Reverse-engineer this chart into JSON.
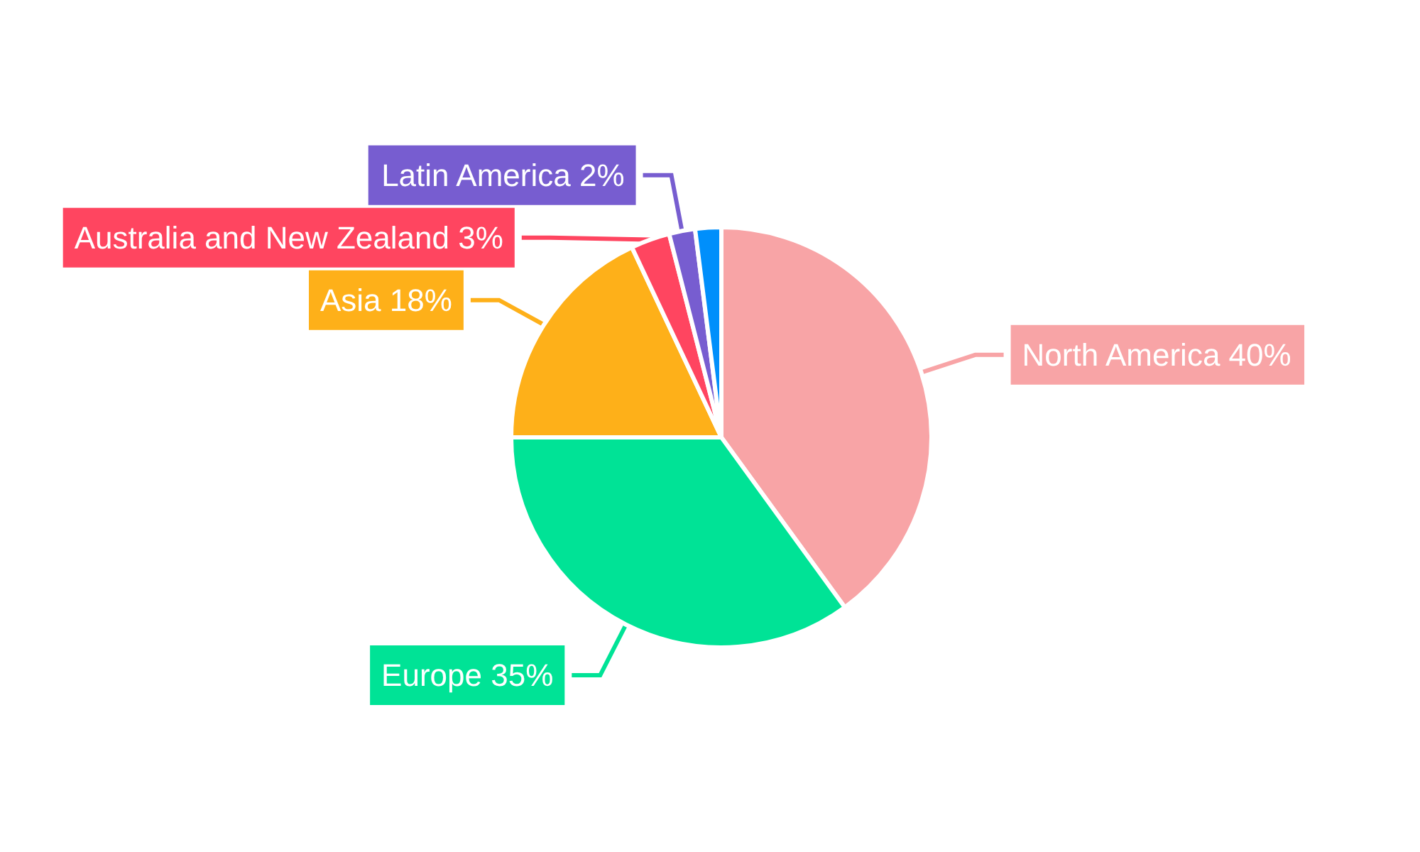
{
  "chart_data": {
    "type": "pie",
    "categories": [
      "North America",
      "Europe",
      "Asia",
      "Australia and New Zealand",
      "Latin America",
      null
    ],
    "values": [
      40,
      35,
      18,
      3,
      2,
      2
    ],
    "value_labels": [
      "40%",
      "35%",
      "18%",
      "3%",
      "2%",
      null
    ],
    "colors": [
      "#f8a4a6",
      "#00e396",
      "#feb019",
      "#ff4560",
      "#775dd0",
      "#008ffb"
    ],
    "legend": false
  }
}
